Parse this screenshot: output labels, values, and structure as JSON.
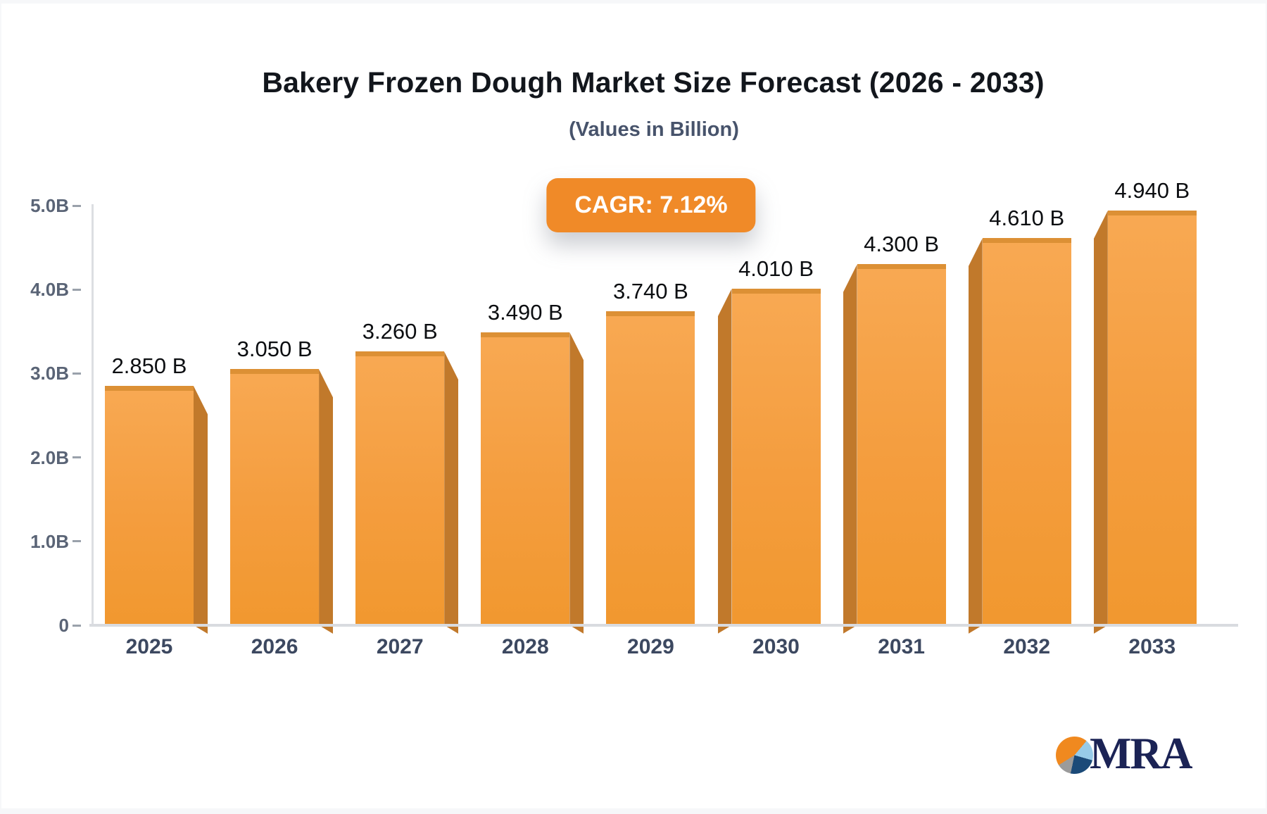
{
  "header": {
    "title": "Bakery Frozen Dough Market Size Forecast (2026 - 2033)",
    "subtitle": "(Values in Billion)"
  },
  "badge": {
    "label": "CAGR: 7.12%",
    "background_color": "#f08a28",
    "text_color": "#ffffff"
  },
  "chart_data": {
    "type": "bar",
    "title": "Bakery Frozen Dough Market Size Forecast (2026 - 2033)",
    "subtitle": "(Values in Billion)",
    "unit": "Billion",
    "cagr": "7.12%",
    "categories": [
      "2025",
      "2026",
      "2027",
      "2028",
      "2029",
      "2030",
      "2031",
      "2032",
      "2033"
    ],
    "values": [
      2.85,
      3.05,
      3.26,
      3.49,
      3.74,
      4.01,
      4.3,
      4.61,
      4.94
    ],
    "value_labels": [
      "2.850 B",
      "3.050 B",
      "3.260 B",
      "3.490 B",
      "3.740 B",
      "4.010 B",
      "4.300 B",
      "4.610 B",
      "4.940 B"
    ],
    "y_ticks": [
      "0",
      "1.0B",
      "2.0B",
      "3.0B",
      "4.0B",
      "5.0B"
    ],
    "ylim": [
      0,
      5
    ],
    "grid": false,
    "legend": "none",
    "bar_color": "#f49d3e",
    "bar_side_color": "#c1792b",
    "bar_top_color": "#dc9035",
    "style": "3d-bevel, dark side faces away from chart center"
  },
  "logo": {
    "text": "MRA",
    "text_color": "#1b2355",
    "pie_colors": [
      "#f0891f",
      "#97cbe8",
      "#1b4a78",
      "#9b9b9b"
    ]
  }
}
